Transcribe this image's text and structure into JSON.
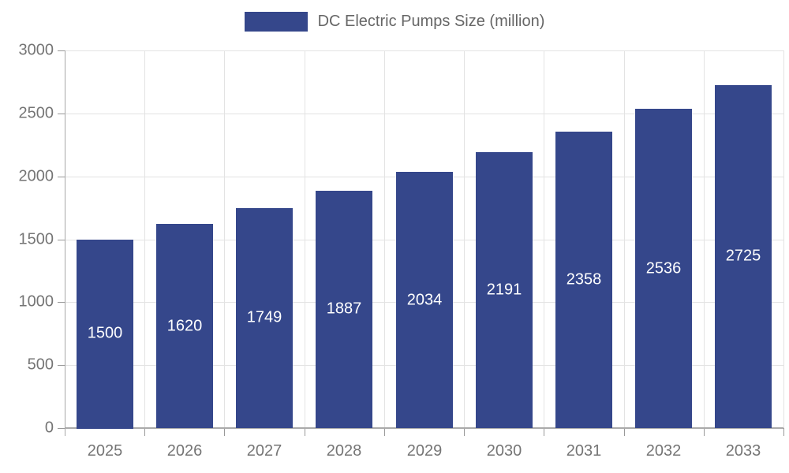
{
  "chart_data": {
    "type": "bar",
    "title": "DC Electric Pumps Size (million)",
    "legend_entries": [
      "DC Electric Pumps Size (million)"
    ],
    "legend_position": "top-center",
    "categories": [
      "2025",
      "2026",
      "2027",
      "2028",
      "2029",
      "2030",
      "2031",
      "2032",
      "2033"
    ],
    "series": [
      {
        "name": "DC Electric Pumps Size (million)",
        "values": [
          1500,
          1620,
          1749,
          1887,
          2034,
          2191,
          2358,
          2536,
          2725
        ]
      }
    ],
    "value_labels": [
      "1500",
      "1620",
      "1749",
      "1887",
      "2034",
      "2191",
      "2358",
      "2536",
      "2725"
    ],
    "xlabel": "",
    "ylabel": "",
    "ylim": [
      0,
      3000
    ],
    "ytick_step": 500,
    "ytick_labels": [
      "0",
      "500",
      "1000",
      "1500",
      "2000",
      "2500",
      "3000"
    ],
    "grid": true,
    "colors": {
      "bar": "#35478B",
      "value_label": "#ffffff",
      "axis_text": "#757575",
      "legend_text": "#666666",
      "gridline": "#e3e3e3",
      "axis_line": "#aaaaaa"
    }
  },
  "legend": {
    "label": "DC Electric Pumps Size (million)"
  }
}
